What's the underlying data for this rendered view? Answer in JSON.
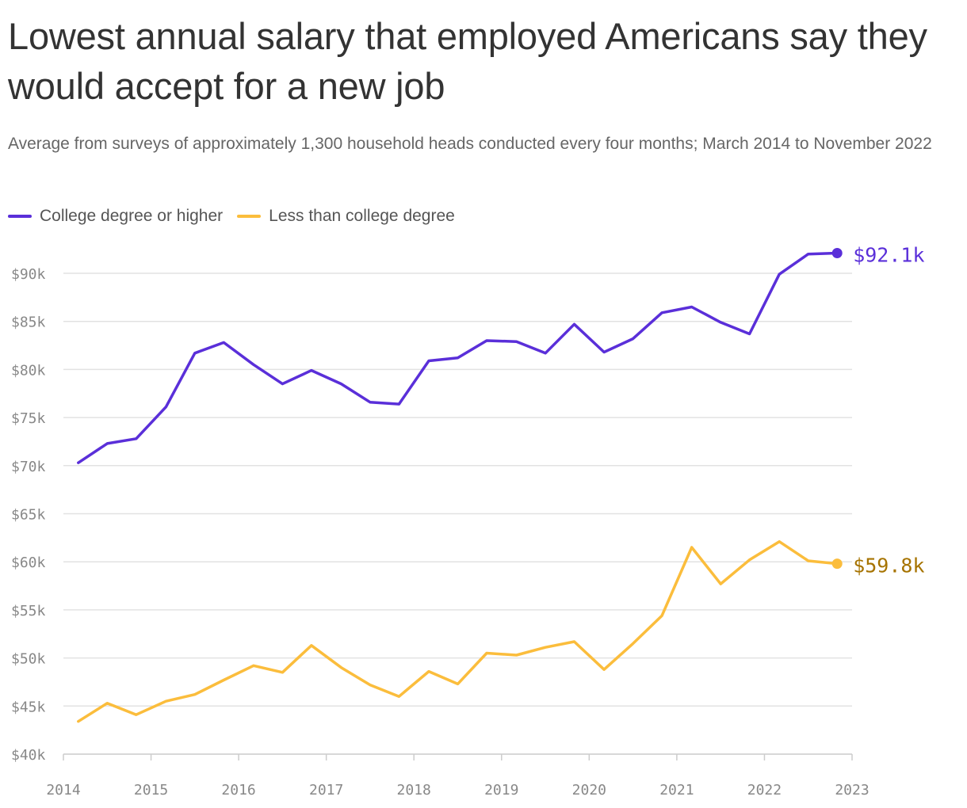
{
  "chart_data": {
    "type": "line",
    "title": "Lowest annual salary that employed Americans say they would accept for a new job",
    "subtitle": "Average from surveys of approximately 1,300 household heads conducted every four months; March 2014 to November 2022",
    "xlabel": "",
    "ylabel": "",
    "x": [
      2014.17,
      2014.5,
      2014.83,
      2015.17,
      2015.5,
      2015.83,
      2016.17,
      2016.5,
      2016.83,
      2017.17,
      2017.5,
      2017.83,
      2018.17,
      2018.5,
      2018.83,
      2019.17,
      2019.5,
      2019.83,
      2020.17,
      2020.5,
      2020.83,
      2021.17,
      2021.5,
      2021.83,
      2022.17,
      2022.5,
      2022.83
    ],
    "xlim": [
      2014,
      2023
    ],
    "ylim": [
      40,
      92
    ],
    "x_ticks": [
      2014,
      2015,
      2016,
      2017,
      2018,
      2019,
      2020,
      2021,
      2022,
      2023
    ],
    "x_tick_labels": [
      "2014",
      "2015",
      "2016",
      "2017",
      "2018",
      "2019",
      "2020",
      "2021",
      "2022",
      "2023"
    ],
    "y_ticks": [
      40,
      45,
      50,
      55,
      60,
      65,
      70,
      75,
      80,
      85,
      90
    ],
    "y_tick_labels": [
      "$40k",
      "$45k",
      "$50k",
      "$55k",
      "$60k",
      "$65k",
      "$70k",
      "$75k",
      "$80k",
      "$85k",
      "$90k"
    ],
    "grid": true,
    "legend_position": "top-left",
    "series": [
      {
        "name": "College degree or higher",
        "color": "#5a2fd9",
        "end_label": "$92.1k",
        "end_label_color": "#5a2fd9",
        "values": [
          70.3,
          72.3,
          72.8,
          76.1,
          81.7,
          82.8,
          80.5,
          78.5,
          79.9,
          78.5,
          76.6,
          76.4,
          80.9,
          81.2,
          83.0,
          82.9,
          81.7,
          84.7,
          81.8,
          83.2,
          85.9,
          86.5,
          84.9,
          83.7,
          89.9,
          92.0,
          92.1
        ]
      },
      {
        "name": "Less than college degree",
        "color": "#fbbd3c",
        "end_label": "$59.8k",
        "end_label_color": "#a67300",
        "values": [
          43.4,
          45.3,
          44.1,
          45.5,
          46.2,
          47.7,
          49.2,
          48.5,
          51.3,
          49.0,
          47.2,
          46.0,
          48.6,
          47.3,
          50.5,
          50.3,
          51.1,
          51.7,
          48.8,
          51.5,
          54.4,
          61.5,
          57.7,
          60.2,
          62.1,
          60.1,
          59.8
        ]
      }
    ]
  }
}
